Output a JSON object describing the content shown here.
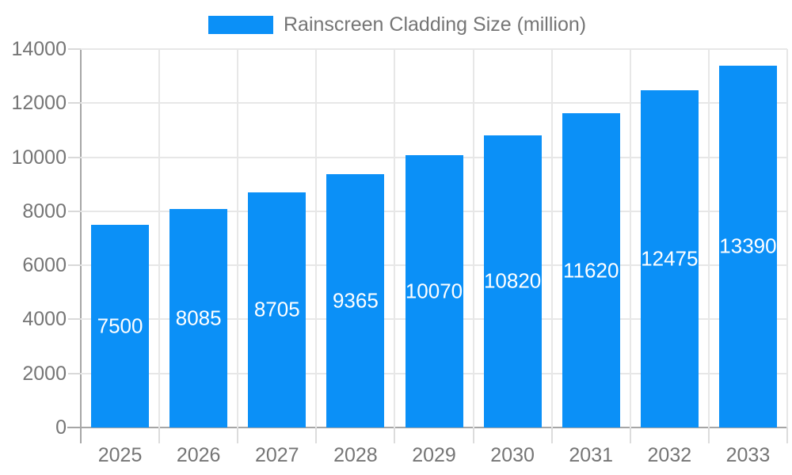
{
  "legend": {
    "label": "Rainscreen Cladding Size (million)"
  },
  "chart_data": {
    "type": "bar",
    "title": "Rainscreen Cladding Size (million)",
    "series_name": "Rainscreen Cladding Size (million)",
    "categories": [
      "2025",
      "2026",
      "2027",
      "2028",
      "2029",
      "2030",
      "2031",
      "2032",
      "2033"
    ],
    "values": [
      7500,
      8085,
      8705,
      9365,
      10070,
      10820,
      11620,
      12475,
      13390
    ],
    "xlabel": "",
    "ylabel": "",
    "ylim": [
      0,
      14000
    ],
    "ytick_step": 2000,
    "yticks": [
      0,
      2000,
      4000,
      6000,
      8000,
      10000,
      12000,
      14000
    ],
    "grid": "both",
    "legend_position": "top-center",
    "value_labels": "inside-middle",
    "colors": {
      "bar": "#0b90f7",
      "axis_text": "#757575",
      "value_text": "#ffffff",
      "gridline": "#e7e7e7",
      "axis_line": "#a6a6a6",
      "background": "#ffffff"
    }
  }
}
